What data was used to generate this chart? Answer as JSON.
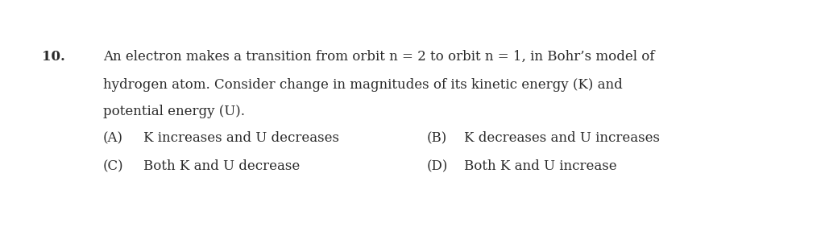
{
  "background_color": "#ffffff",
  "question_number": "10.",
  "text_color": "#2a2a2a",
  "font_family": "DejaVu Serif",
  "question_number_fontsize": 12,
  "text_fontsize": 12,
  "option_fontsize": 12,
  "line1": "An electron makes a transition from orbit n = 2 to orbit n = 1, in Bohr’s model of",
  "line2": "hydrogen atom. Consider change in magnitudes of its kinetic energy (K) and",
  "line3": "potential energy (U).",
  "option_A_label": "(A)",
  "option_A_text": "K increases and U decreases",
  "option_B_label": "(B)",
  "option_B_text": "K decreases and U increases",
  "option_C_label": "(C)",
  "option_C_text": "Both K and U decrease",
  "option_D_label": "(D)",
  "option_D_text": "Both K and U increase"
}
